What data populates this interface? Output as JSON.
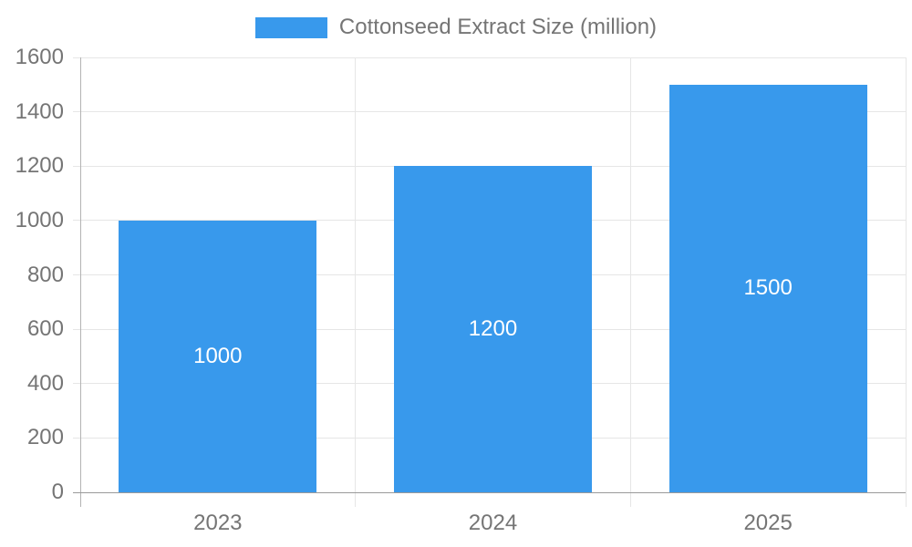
{
  "legend": {
    "label": "Cottonseed Extract Size (million)"
  },
  "chart_data": {
    "type": "bar",
    "title": "",
    "xlabel": "",
    "ylabel": "",
    "categories": [
      "2023",
      "2024",
      "2025"
    ],
    "series": [
      {
        "name": "Cottonseed Extract Size (million)",
        "values": [
          1000,
          1200,
          1500
        ]
      }
    ],
    "data_labels": [
      "1000",
      "1200",
      "1500"
    ],
    "ylim": [
      0,
      1600
    ],
    "yticks": [
      0,
      200,
      400,
      600,
      800,
      1000,
      1200,
      1400,
      1600
    ],
    "grid": true,
    "legend_position": "top-center",
    "colors": {
      "bar": "#3899EC",
      "data_label": "#ffffff",
      "axis_text": "#757575",
      "gridline": "#e6e6e6",
      "axis_line": "#b3b3b3",
      "baseline": "#9a9a9a",
      "background": "#ffffff"
    }
  }
}
